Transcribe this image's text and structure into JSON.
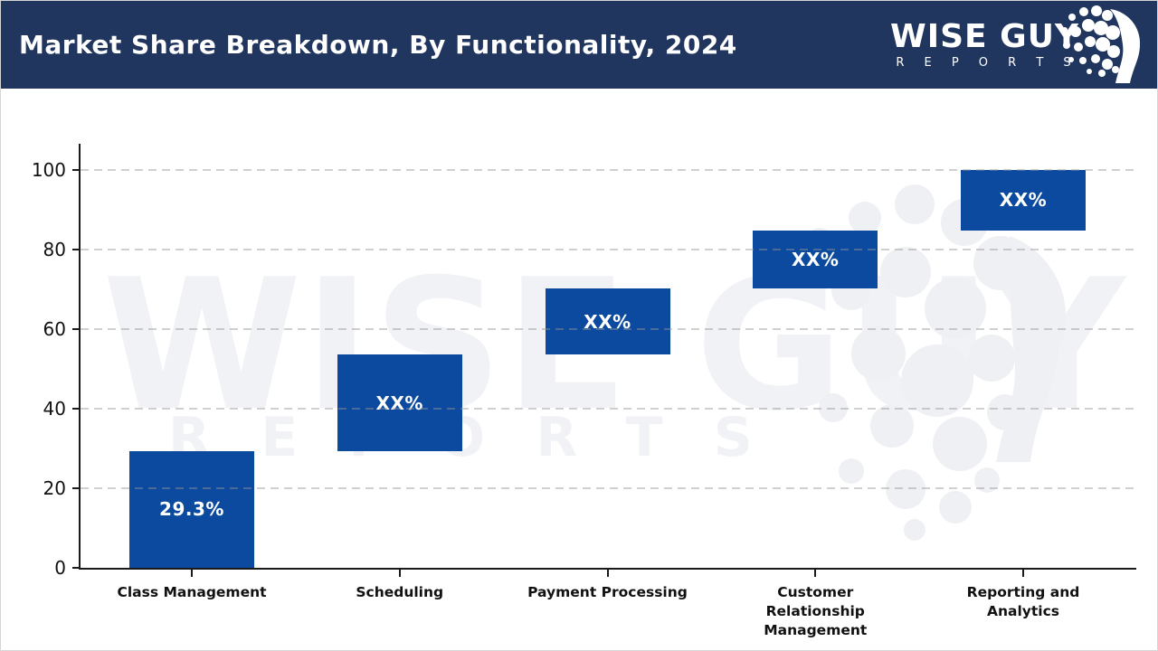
{
  "header": {
    "title": "Market Share Breakdown, By Functionality, 2024",
    "logo_name": "WISE GUY",
    "logo_sub": "R E P O R T S"
  },
  "watermark": {
    "line1": "WISE GUY",
    "line2": "REPORTS"
  },
  "colors": {
    "header_bg": "#21365f",
    "bar": "#0b4a9e",
    "bar_label": "#ffffff",
    "watermark": "#f1f2f5"
  },
  "chart_data": {
    "type": "bar",
    "variant": "waterfall",
    "title": "Market Share Breakdown, By Functionality, 2024",
    "categories": [
      "Class Management",
      "Scheduling",
      "Payment Processing",
      "Customer Relationship Management",
      "Reporting and Analytics"
    ],
    "category_lines": [
      [
        "Class Management"
      ],
      [
        "Scheduling"
      ],
      [
        "Payment Processing"
      ],
      [
        "Customer",
        "Relationship",
        "Management"
      ],
      [
        "Reporting and",
        "Analytics"
      ]
    ],
    "segments": [
      {
        "category": "Class Management",
        "label": "29.3%",
        "start": 0,
        "end": 29.3
      },
      {
        "category": "Scheduling",
        "label": "XX%",
        "start": 29.3,
        "end": 53.5
      },
      {
        "category": "Payment Processing",
        "label": "XX%",
        "start": 53.5,
        "end": 70.2
      },
      {
        "category": "Customer Relationship Management",
        "label": "XX%",
        "start": 70.2,
        "end": 84.6
      },
      {
        "category": "Reporting and Analytics",
        "label": "XX%",
        "start": 84.6,
        "end": 100
      }
    ],
    "yticks": [
      "0",
      "20",
      "40",
      "60",
      "80",
      "100"
    ],
    "ytick_values": [
      0,
      20,
      40,
      60,
      80,
      100
    ],
    "ylim": [
      0,
      107
    ],
    "xlabel": "",
    "ylabel": "",
    "grid": "horizontal-dashed",
    "legend": null,
    "bar_color": "#0b4a9e",
    "label_color": "#ffffff"
  }
}
